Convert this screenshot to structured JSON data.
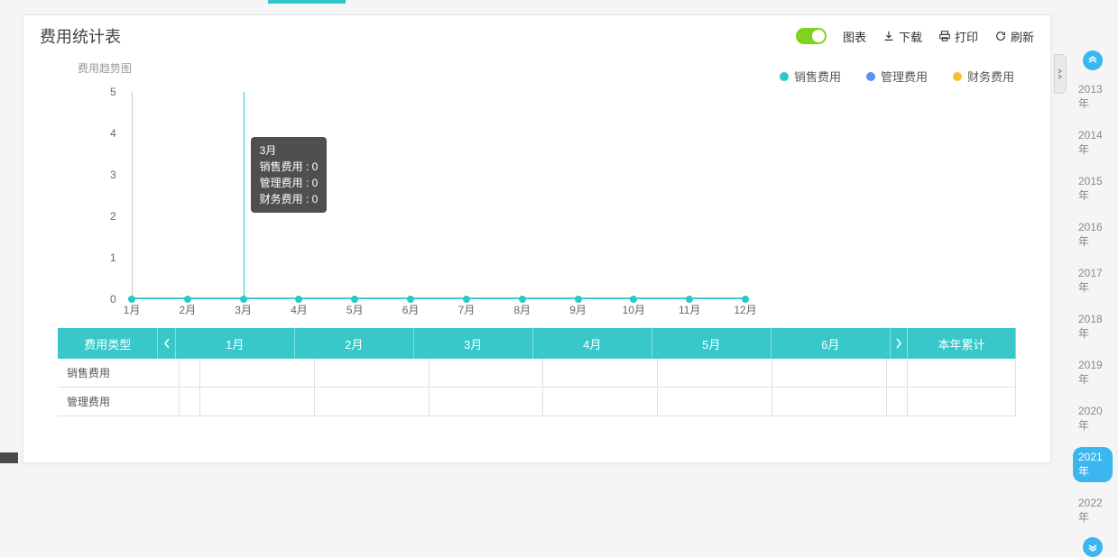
{
  "header": {
    "title": "费用统计表",
    "toggle_label": "图表",
    "download_label": "下载",
    "print_label": "打印",
    "refresh_label": "刷新"
  },
  "chart": {
    "subtitle": "费用趋势图",
    "type": "line",
    "legend": [
      {
        "label": "销售费用",
        "color": "#2ec7c9"
      },
      {
        "label": "管理费用",
        "color": "#5b8ff9"
      },
      {
        "label": "财务费用",
        "color": "#f6c032"
      }
    ],
    "xlabels": [
      "1月",
      "2月",
      "3月",
      "4月",
      "5月",
      "6月",
      "7月",
      "8月",
      "9月",
      "10月",
      "11月",
      "12月"
    ],
    "ylim": [
      0,
      5
    ],
    "yticks": [
      0,
      1,
      2,
      3,
      4,
      5
    ],
    "series": {
      "销售费用": [
        0,
        0,
        0,
        0,
        0,
        0,
        0,
        0,
        0,
        0,
        0,
        0
      ],
      "管理费用": [
        0,
        0,
        0,
        0,
        0,
        0,
        0,
        0,
        0,
        0,
        0,
        0
      ],
      "财务费用": [
        0,
        0,
        0,
        0,
        0,
        0,
        0,
        0,
        0,
        0,
        0,
        0
      ]
    },
    "marker_color": "#2ec7c9",
    "axis_color": "#cccccc",
    "crosshair_index": 2,
    "tooltip": {
      "title": "3月",
      "lines": [
        "销售费用 : 0",
        "管理费用 : 0",
        "财务费用 : 0"
      ]
    }
  },
  "table": {
    "first_header": "费用类型",
    "month_headers": [
      "1月",
      "2月",
      "3月",
      "4月",
      "5月",
      "6月"
    ],
    "total_header": "本年累计",
    "rows": [
      {
        "label": "销售费用",
        "cells": [
          "",
          "",
          "",
          "",
          "",
          ""
        ],
        "total": ""
      },
      {
        "label": "管理费用",
        "cells": [
          "",
          "",
          "",
          "",
          "",
          ""
        ],
        "total": ""
      }
    ]
  },
  "years": {
    "list": [
      "2013年",
      "2014年",
      "2015年",
      "2016年",
      "2017年",
      "2018年",
      "2019年",
      "2020年",
      "2021年",
      "2022年"
    ],
    "active": "2021年"
  },
  "colors": {
    "accent": "#2ec7c9",
    "rail": "#3bb6ef",
    "toggle_on": "#7ed321"
  }
}
